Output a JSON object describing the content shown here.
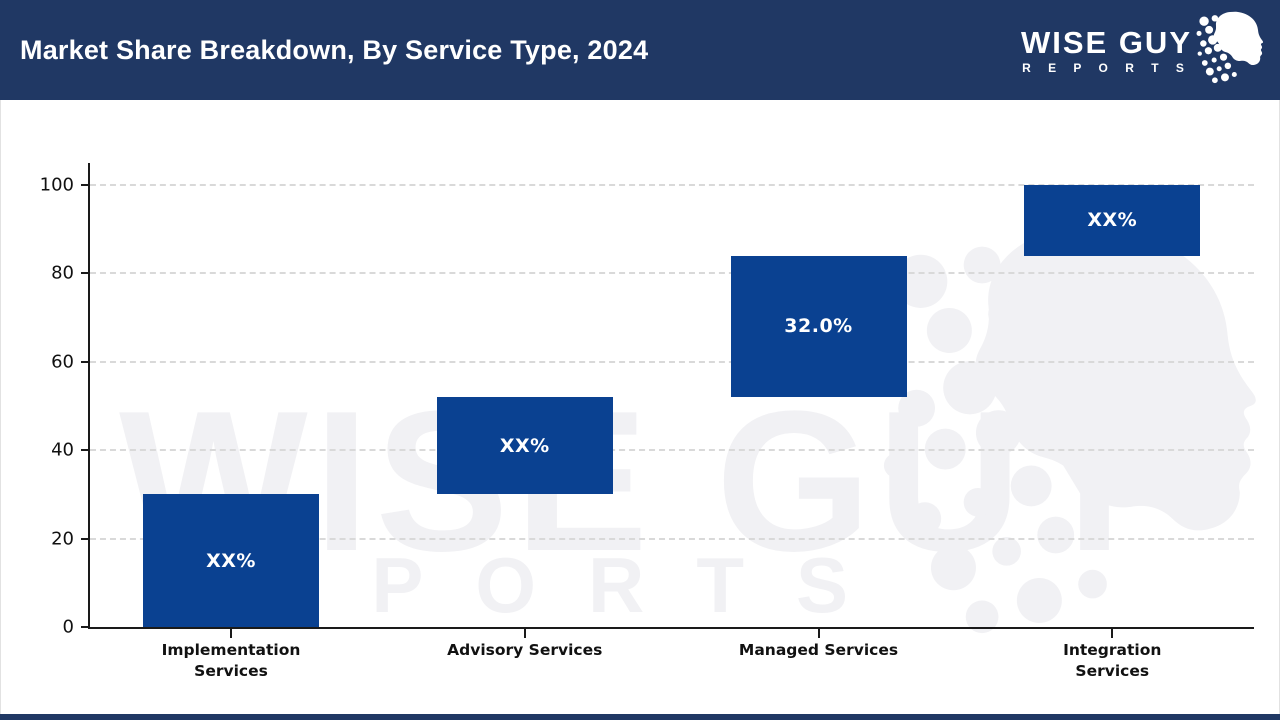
{
  "header": {
    "title": "Market Share Breakdown, By Service Type, 2024",
    "logo": {
      "name": "WISE GUY",
      "tagline": "R E P O R T S"
    }
  },
  "watermark": {
    "line1": "WISE GUY",
    "line2": "REPORTS"
  },
  "colors": {
    "header_bg": "#203864",
    "footer_bg": "#203864",
    "bar": "#0a4191",
    "grid": "#d9d9d9",
    "axis": "#1a1a1a",
    "watermark": "#f1f1f4",
    "bar_label": "#ffffff",
    "title_text": "#ffffff"
  },
  "chart_data": {
    "type": "bar",
    "subtype": "waterfall",
    "title": "Market Share Breakdown, By Service Type, 2024",
    "categories": [
      "Implementation Services",
      "Advisory Services",
      "Managed Services",
      "Integration Services"
    ],
    "tick_labels": [
      "Implementation\nServices",
      "Advisory Services",
      "Managed Services",
      "Integration\nServices"
    ],
    "segments": [
      {
        "category": "Implementation Services",
        "start": 0,
        "end": 30,
        "label": "XX%"
      },
      {
        "category": "Advisory Services",
        "start": 30,
        "end": 52,
        "label": "XX%"
      },
      {
        "category": "Managed Services",
        "start": 52,
        "end": 84,
        "label": "32.0%"
      },
      {
        "category": "Integration Services",
        "start": 84,
        "end": 100,
        "label": "XX%"
      }
    ],
    "ylim": [
      0,
      100
    ],
    "yticks": [
      0,
      20,
      40,
      60,
      80,
      100
    ],
    "grid": "horizontal dashed",
    "legend": "none",
    "xlabel": "",
    "ylabel": ""
  }
}
